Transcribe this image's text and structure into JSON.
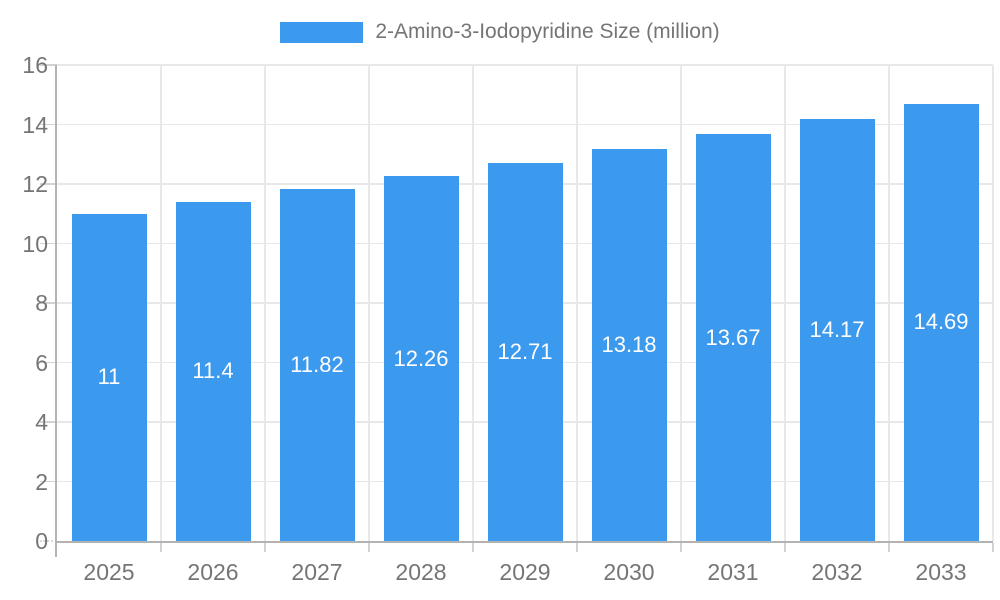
{
  "chart_data": {
    "type": "bar",
    "title": "2-Amino-3-Iodopyridine Size (million)",
    "categories": [
      "2025",
      "2026",
      "2027",
      "2028",
      "2029",
      "2030",
      "2031",
      "2032",
      "2033"
    ],
    "values": [
      11,
      11.4,
      11.82,
      12.26,
      12.71,
      13.18,
      13.67,
      14.17,
      14.69
    ],
    "value_labels": [
      "11",
      "11.4",
      "11.82",
      "12.26",
      "12.71",
      "13.18",
      "13.67",
      "14.17",
      "14.69"
    ],
    "series": [
      {
        "name": "2-Amino-3-Iodopyridine Size (million)",
        "values": [
          11,
          11.4,
          11.82,
          12.26,
          12.71,
          13.18,
          13.67,
          14.17,
          14.69
        ]
      }
    ],
    "xlabel": "",
    "ylabel": "",
    "ylim": [
      0,
      16
    ],
    "y_ticks": [
      "0",
      "2",
      "4",
      "6",
      "8",
      "10",
      "12",
      "14",
      "16"
    ],
    "grid": true,
    "legend_position": "top",
    "colors": {
      "bar": "#3B99EE",
      "grid": "#E8E8E8",
      "axis": "#B3B3B3",
      "tick": "#D2D2D2",
      "label_text": "#757575",
      "value_text": "#FFFFFF",
      "background": "#FFFFFF"
    }
  }
}
